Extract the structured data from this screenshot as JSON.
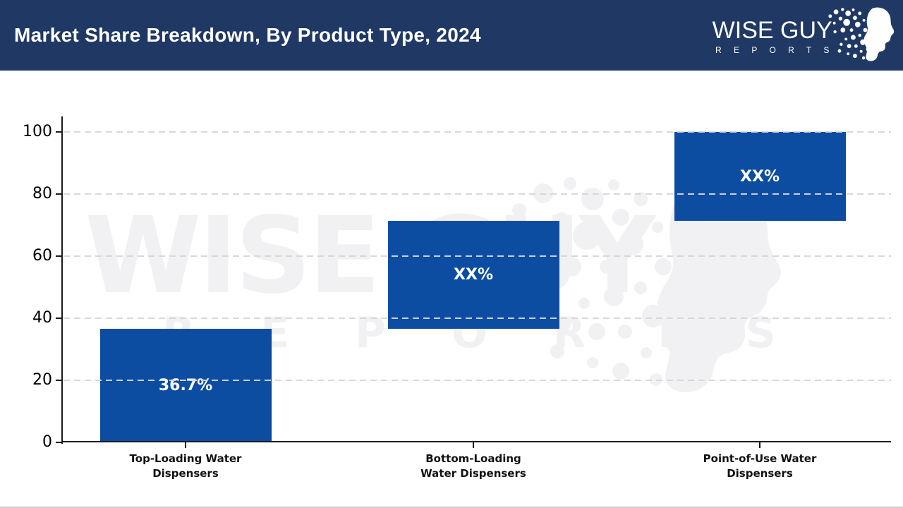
{
  "header": {
    "title": "Market Share Breakdown, By Product Type, 2024",
    "bg_color": "#1f3864",
    "logo": {
      "line1": "WISE GUY",
      "line2": "R E P O R T S"
    }
  },
  "watermark": {
    "line1": "WISE GUY",
    "line2": "R E P O R T S"
  },
  "chart_data": {
    "type": "bar",
    "subtype": "waterfall",
    "title": "Market Share Breakdown, By Product Type, 2024",
    "categories": [
      [
        "Top-Loading Water",
        "Dispensers"
      ],
      [
        "Bottom-Loading",
        "Water Dispensers"
      ],
      [
        "Point-of-Use Water",
        "Dispensers"
      ]
    ],
    "segments": [
      {
        "category": "Top-Loading Water Dispensers",
        "start": 0,
        "end": 36.7,
        "label": "36.7%"
      },
      {
        "category": "Bottom-Loading Water Dispensers",
        "start": 36.7,
        "end": 71.3,
        "label": "XX%"
      },
      {
        "category": "Point-of-Use Water Dispensers",
        "start": 71.3,
        "end": 100,
        "label": "XX%"
      }
    ],
    "yticks": [
      0,
      20,
      40,
      60,
      80,
      100
    ],
    "ylim": [
      0,
      105
    ],
    "xlabel": "",
    "ylabel": "",
    "grid": "horizontal dashed",
    "legend": "none",
    "bar_color": "#0c4da2",
    "bar_label_color": "#ffffff",
    "axis_color": "#1a1a1a",
    "gridline_color": "#d6d6d6"
  }
}
